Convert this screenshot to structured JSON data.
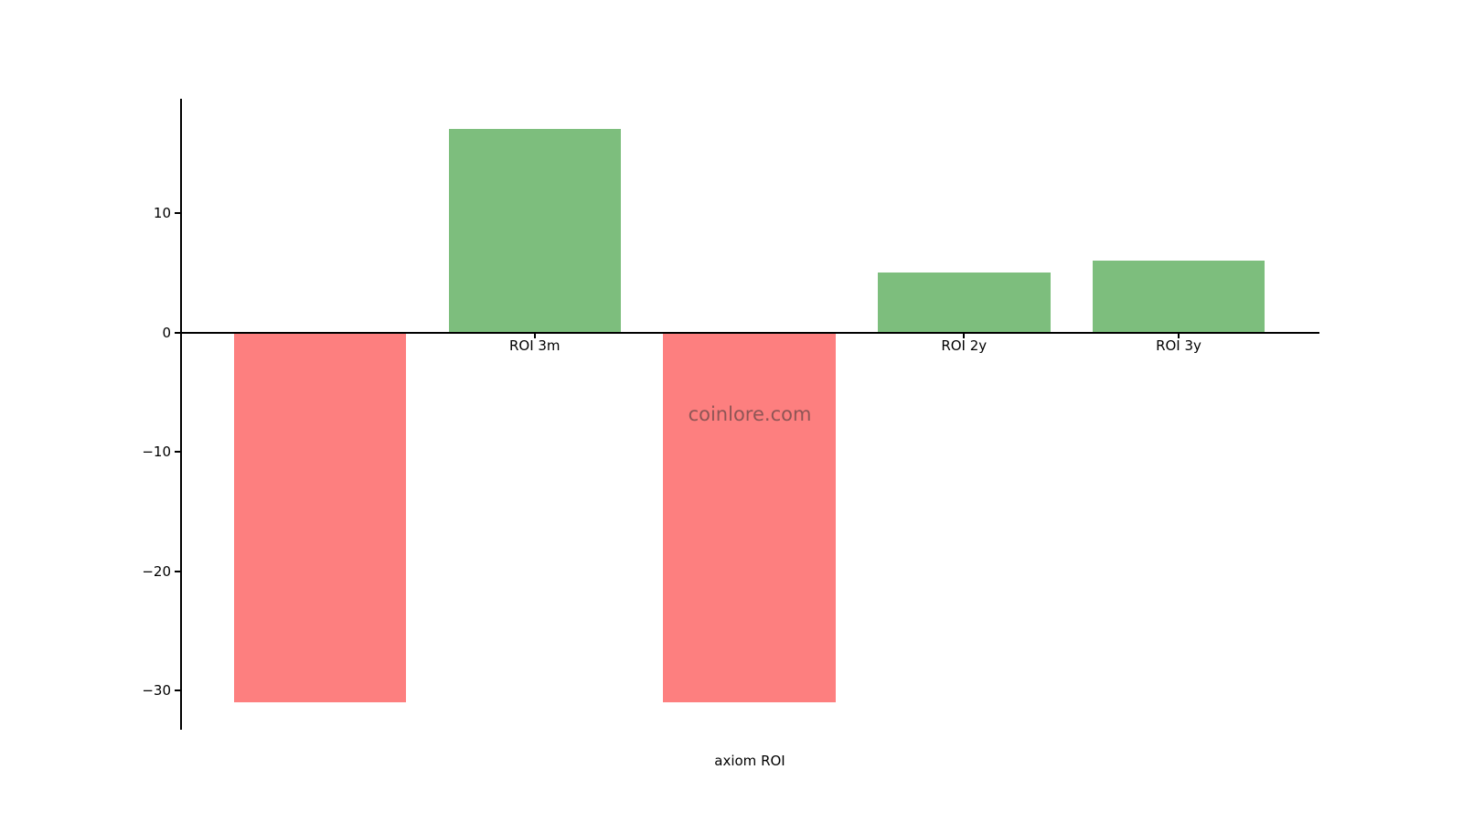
{
  "page": {
    "watermark": "coinlore.com",
    "title": "axiom ROI"
  },
  "chart_data": {
    "type": "bar",
    "categories": [
      "",
      "ROI 3m",
      "",
      "ROI 2y",
      "ROI 3y"
    ],
    "values": [
      -31,
      17,
      -31,
      5,
      6
    ],
    "title": "axiom ROI",
    "xlabel": "axiom ROI",
    "ylabel": "",
    "ylim": [
      -33.3,
      19.6
    ],
    "yticks": [
      10,
      0,
      -10,
      -20,
      -30
    ],
    "watermark": "coinlore.com",
    "legend": "none",
    "grid": false,
    "colors": {
      "positive": "#7dbe7d",
      "negative": "#fd7f7f",
      "axis": "#000000",
      "watermark_text": "#333333"
    }
  }
}
